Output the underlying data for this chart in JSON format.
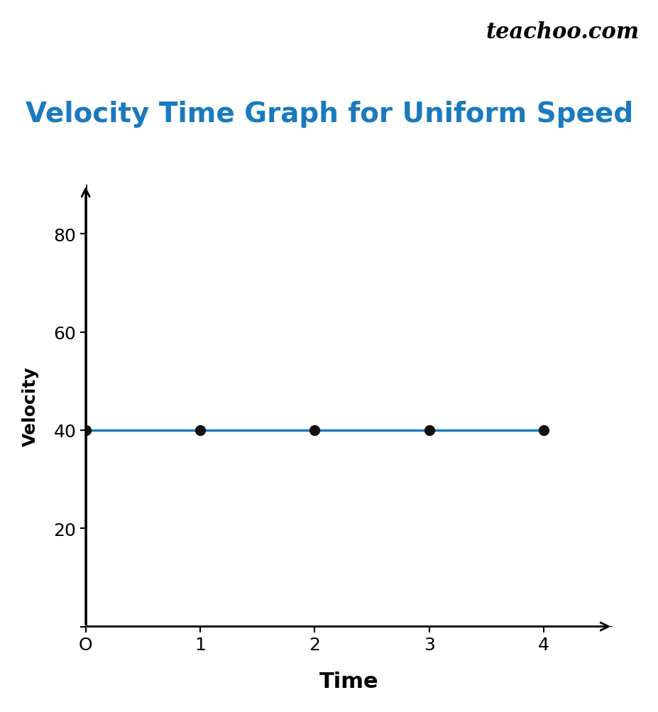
{
  "title": "Velocity Time Graph for Uniform Speed",
  "title_color": "#1a7abf",
  "xlabel": "Time",
  "ylabel": "Velocity",
  "x_data": [
    0,
    1,
    2,
    3,
    4
  ],
  "y_data": [
    40,
    40,
    40,
    40,
    40
  ],
  "line_color": "#1a7abf",
  "marker_color": "#111111",
  "xlim": [
    0,
    4.6
  ],
  "ylim": [
    0,
    90
  ],
  "xticks": [
    0,
    1,
    2,
    3,
    4
  ],
  "yticks": [
    0,
    20,
    40,
    60,
    80
  ],
  "tick_labels_x": [
    "O",
    "1",
    "2",
    "3",
    "4"
  ],
  "tick_labels_y": [
    "",
    "20",
    "40",
    "60",
    "80"
  ],
  "watermark": "teachoo.com",
  "background_color": "#ffffff",
  "line_width": 2.5,
  "marker_size": 10,
  "title_fontsize": 28,
  "xlabel_fontsize": 22,
  "ylabel_fontsize": 18,
  "tick_fontsize": 18,
  "watermark_fontsize": 22
}
